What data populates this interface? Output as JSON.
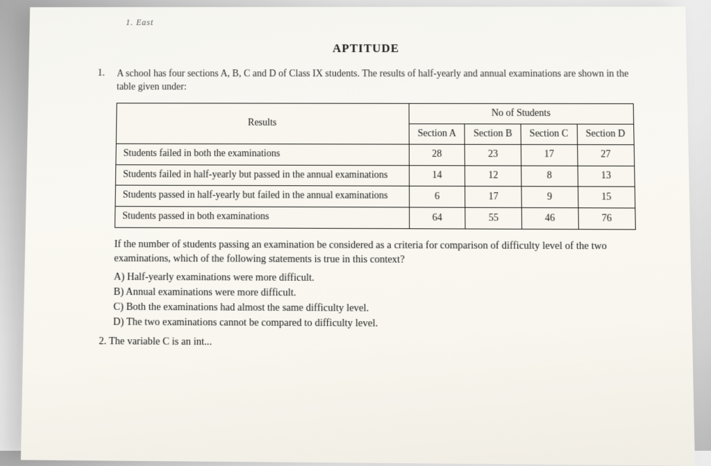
{
  "scribble": "1.  East",
  "sectionTitle": "APTITUDE",
  "question": {
    "number": "1.",
    "text": "A school has four sections A, B, C and D of Class IX students. The results of half-yearly and annual examinations are shown in the table given under:"
  },
  "table": {
    "resultsLabel": "Results",
    "noOfStudents": "No of Students",
    "columns": [
      "Section A",
      "Section B",
      "Section C",
      "Section D"
    ],
    "rows": [
      {
        "label": "Students failed in both the examinations",
        "values": [
          "28",
          "23",
          "17",
          "27"
        ]
      },
      {
        "label": "Students failed in half-yearly but passed in the annual examinations",
        "values": [
          "14",
          "12",
          "8",
          "13"
        ]
      },
      {
        "label": "Students passed in half-yearly but failed in the annual examinations",
        "values": [
          "6",
          "17",
          "9",
          "15"
        ]
      },
      {
        "label": "Students passed in both examinations",
        "values": [
          "64",
          "55",
          "46",
          "76"
        ]
      }
    ]
  },
  "followText": "If the number of students passing an examination be considered as a criteria for comparison of difficulty level of the two examinations, which of the following statements is true in this context?",
  "options": {
    "a": "A) Half-yearly examinations were more difficult.",
    "b": "B) Annual examinations were more difficult.",
    "c": "C) Both the examinations had almost the same difficulty level.",
    "d": "D) The two examinations cannot be compared to difficulty level."
  },
  "cutoff": "2.   The variable C is an int..."
}
